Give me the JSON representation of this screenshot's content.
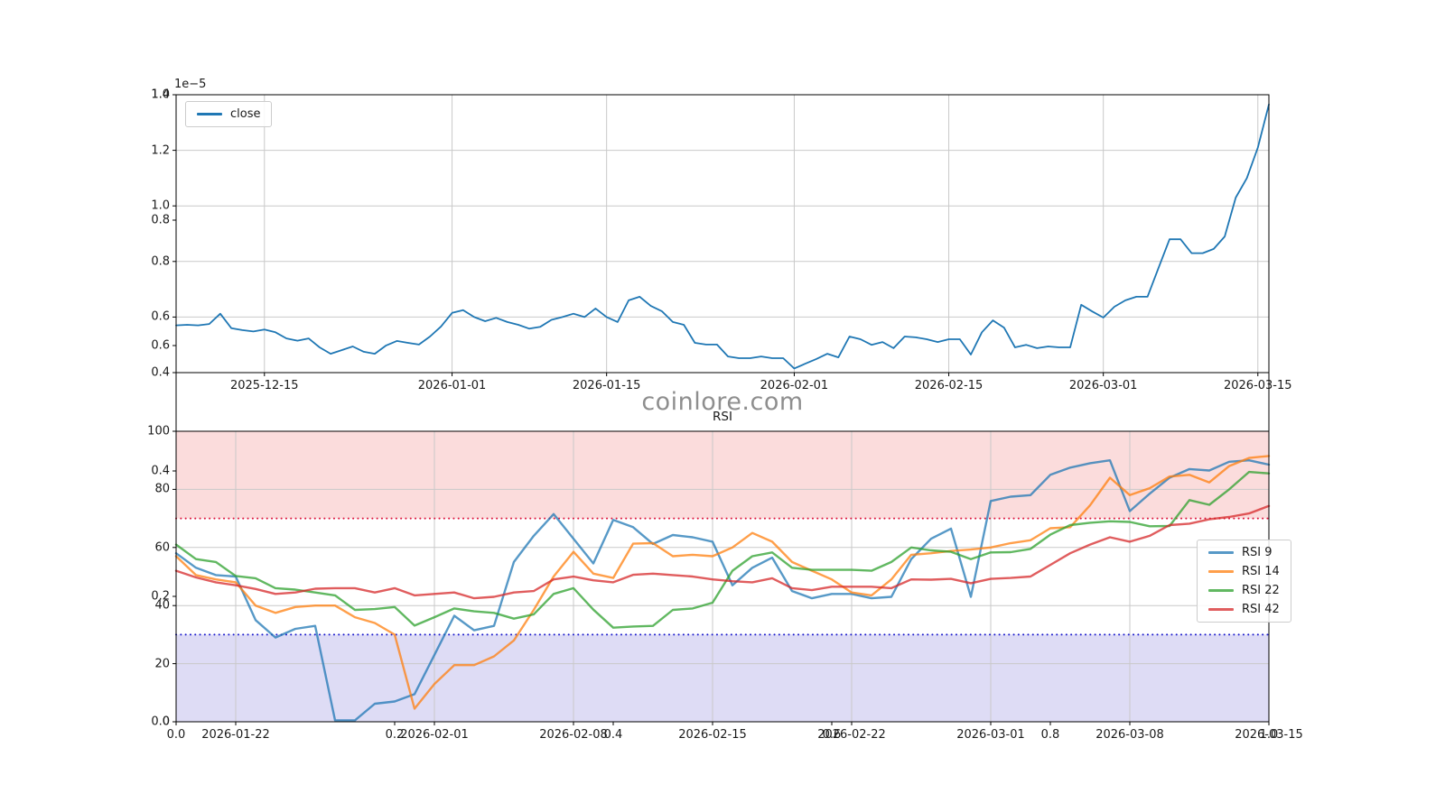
{
  "watermark": {
    "text": "coinlore.com",
    "color": "#8e8e8e"
  },
  "rsi_title": "RSI",
  "offset_label": "1e−5",
  "colors": {
    "close": "#1f77b4",
    "rsi9": "rgba(31,119,180,0.75)",
    "rsi14": "rgba(255,127,14,0.75)",
    "rsi22": "rgba(44,160,44,0.75)",
    "rsi42": "rgba(214,39,40,0.75)",
    "grid": "#c9c9c9",
    "spine": "#000000",
    "overbought_fill": "#fbdcdc",
    "oversold_fill": "#dedcf5",
    "overbought_line": "#dc143c",
    "oversold_line": "#1c1ccd"
  },
  "price_legend": {
    "close_label": "close"
  },
  "overlay_axis": {
    "x_tick_labels": [
      "0.0",
      "0.2",
      "0.4",
      "0.6",
      "0.8",
      "1.0"
    ],
    "y_tick_labels": [
      "0.0",
      "0.2",
      "0.4",
      "0.6",
      "0.8",
      "1.0"
    ]
  },
  "chart_data": [
    {
      "id": "price",
      "type": "line",
      "title": "",
      "ylabel": "",
      "y_offset_text": "1e−5",
      "ylim": [
        0.4,
        1.4
      ],
      "y_ticks": [
        0.4,
        0.6,
        0.8,
        1.0,
        1.2,
        1.4
      ],
      "y_tick_labels": [
        "0.4",
        "0.6",
        "0.8",
        "1.0",
        "1.2",
        "1.4"
      ],
      "grid": true,
      "legend_position": "upper-left",
      "n_points": 100,
      "x_ticks": [
        {
          "label": "2025-12-15",
          "i": 8
        },
        {
          "label": "2026-01-01",
          "i": 25
        },
        {
          "label": "2026-01-15",
          "i": 39
        },
        {
          "label": "2026-02-01",
          "i": 56
        },
        {
          "label": "2026-02-15",
          "i": 70
        },
        {
          "label": "2026-03-01",
          "i": 84
        },
        {
          "label": "2026-03-15",
          "i": 98
        }
      ],
      "series": [
        {
          "name": "close",
          "color_key": "close",
          "width": 1.8,
          "values": [
            0.57,
            0.572,
            0.57,
            0.575,
            0.612,
            0.56,
            0.553,
            0.548,
            0.555,
            0.545,
            0.523,
            0.515,
            0.523,
            0.491,
            0.468,
            0.481,
            0.494,
            0.475,
            0.468,
            0.497,
            0.514,
            0.507,
            0.501,
            0.53,
            0.566,
            0.615,
            0.625,
            0.6,
            0.585,
            0.597,
            0.582,
            0.572,
            0.558,
            0.565,
            0.59,
            0.6,
            0.612,
            0.6,
            0.631,
            0.6,
            0.582,
            0.66,
            0.673,
            0.64,
            0.621,
            0.582,
            0.572,
            0.507,
            0.501,
            0.501,
            0.458,
            0.452,
            0.452,
            0.458,
            0.452,
            0.452,
            0.415,
            0.432,
            0.449,
            0.468,
            0.455,
            0.53,
            0.52,
            0.5,
            0.51,
            0.488,
            0.53,
            0.527,
            0.52,
            0.51,
            0.52,
            0.52,
            0.465,
            0.545,
            0.588,
            0.562,
            0.491,
            0.5,
            0.488,
            0.494,
            0.491,
            0.491,
            0.644,
            0.62,
            0.598,
            0.637,
            0.66,
            0.673,
            0.673,
            0.777,
            0.88,
            0.88,
            0.83,
            0.83,
            0.845,
            0.89,
            1.03,
            1.1,
            1.21,
            1.365
          ]
        }
      ]
    },
    {
      "id": "rsi",
      "type": "line",
      "title": "RSI",
      "ylim": [
        0,
        100
      ],
      "y_ticks": [
        0,
        20,
        40,
        60,
        80,
        100
      ],
      "y_tick_labels": [
        "0",
        "20",
        "40",
        "60",
        "80",
        "100"
      ],
      "grid": true,
      "legend_position": "center-right",
      "overbought_band": {
        "from": 70,
        "to": 100
      },
      "oversold_band": {
        "from": 0,
        "to": 30
      },
      "threshold_lines": [
        {
          "y": 70,
          "color_key": "overbought_line",
          "style": "dotted"
        },
        {
          "y": 30,
          "color_key": "oversold_line",
          "style": "dotted"
        }
      ],
      "n_points": 56,
      "x_ticks": [
        {
          "label": "2026-01-22",
          "i": 3
        },
        {
          "label": "2026-02-01",
          "i": 13
        },
        {
          "label": "2026-02-08",
          "i": 20
        },
        {
          "label": "2026-02-15",
          "i": 27
        },
        {
          "label": "2026-02-22",
          "i": 34
        },
        {
          "label": "2026-03-01",
          "i": 41
        },
        {
          "label": "2026-03-08",
          "i": 48
        },
        {
          "label": "2026-03-15",
          "i": 55
        }
      ],
      "series": [
        {
          "name": "RSI 9",
          "color_key": "rsi9",
          "width": 2.4,
          "values": [
            58,
            53,
            50.5,
            50,
            35,
            29,
            32,
            33,
            0.5,
            0.5,
            6.2,
            7,
            9.5,
            23,
            36.5,
            31.5,
            33,
            55,
            64,
            71.5,
            63,
            54.5,
            69.5,
            67,
            61.2,
            64.3,
            63.5,
            62,
            47,
            53,
            56.5,
            45,
            42.5,
            44,
            44,
            42.5,
            43,
            56,
            63,
            66.5,
            43,
            76,
            77.5,
            78,
            85,
            87.5,
            89,
            90,
            72.5,
            78.5,
            84,
            87,
            86.5,
            89.5,
            90,
            88.5
          ]
        },
        {
          "name": "RSI 14",
          "color_key": "rsi14",
          "width": 2.4,
          "values": [
            57,
            50.5,
            49,
            48,
            40,
            37.5,
            39.5,
            40,
            40,
            36,
            34,
            30,
            4.5,
            13,
            19.5,
            19.5,
            22.5,
            28,
            38.5,
            50,
            58.5,
            51,
            49.5,
            61.3,
            61.5,
            57,
            57.5,
            57,
            60,
            65,
            62,
            55,
            52,
            49,
            44.5,
            43.5,
            49,
            57.5,
            58,
            58.8,
            59.3,
            60,
            61.5,
            62.5,
            66.6,
            67,
            74.5,
            84,
            78,
            80.4,
            84.4,
            85,
            82.4,
            88,
            90.8,
            91.5
          ]
        },
        {
          "name": "RSI 22",
          "color_key": "rsi22",
          "width": 2.4,
          "values": [
            61,
            56,
            55,
            50.2,
            49.4,
            46,
            45.5,
            44.5,
            43.5,
            38.5,
            38.8,
            39.5,
            33.1,
            36,
            39,
            38,
            37.5,
            35.5,
            37,
            44,
            46,
            38.6,
            32.4,
            32.8,
            33,
            38.5,
            39,
            41,
            52,
            57,
            58.3,
            53,
            52.3,
            52.3,
            52.3,
            52,
            55,
            60,
            59,
            58.5,
            56,
            58.3,
            58.4,
            59.5,
            64.4,
            67.7,
            68.5,
            69,
            68.8,
            67.3,
            67.4,
            76.3,
            74.7,
            80,
            86,
            85.5
          ]
        },
        {
          "name": "RSI 42",
          "color_key": "rsi42",
          "width": 2.4,
          "values": [
            52,
            49.7,
            48,
            47,
            45.7,
            44,
            44.5,
            45.8,
            46,
            46,
            44.5,
            46,
            43.5,
            44,
            44.5,
            42.5,
            43,
            44.5,
            45,
            49,
            50,
            48.7,
            48,
            50.6,
            51,
            50.5,
            50,
            49,
            48.4,
            48,
            49.4,
            46,
            45.3,
            46.5,
            46.5,
            46.5,
            46,
            49,
            48.9,
            49.2,
            47.7,
            49.2,
            49.5,
            50,
            54,
            58,
            61,
            63.5,
            62,
            64,
            67.7,
            68.2,
            69.7,
            70.5,
            71.7,
            74.3
          ]
        }
      ]
    }
  ]
}
